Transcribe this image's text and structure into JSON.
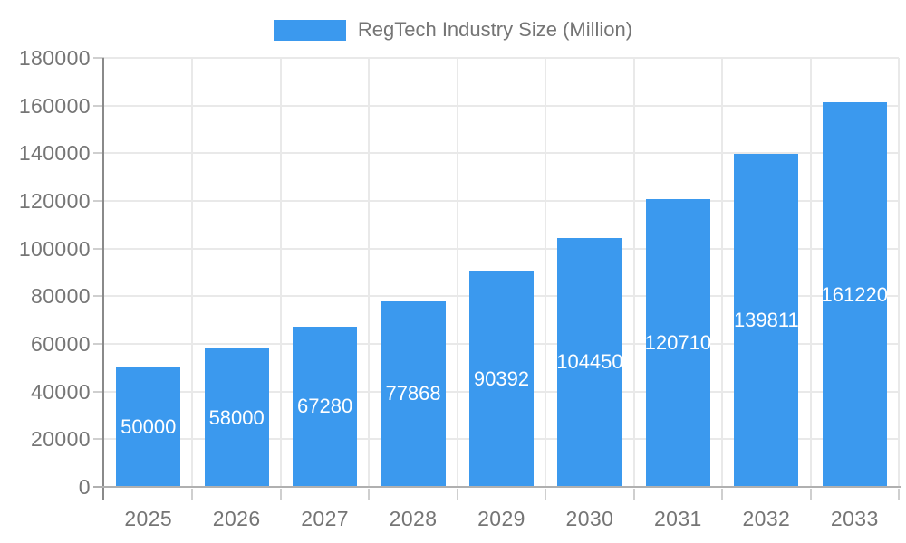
{
  "chart_data": {
    "type": "bar",
    "title": "RegTech Industry Size (Million)",
    "legend": {
      "label": "RegTech Industry Size (Million)",
      "position": "top"
    },
    "categories": [
      "2025",
      "2026",
      "2027",
      "2028",
      "2029",
      "2030",
      "2031",
      "2032",
      "2033"
    ],
    "series": [
      {
        "name": "RegTech Industry Size (Million)",
        "values": [
          50000,
          58000,
          67280,
          77868,
          90392,
          104450,
          120710,
          139811,
          161220
        ]
      }
    ],
    "bar_value_labels": [
      "50000",
      "58000",
      "67280",
      "77868",
      "90392",
      "104450",
      "120710",
      "139811",
      "161220"
    ],
    "xlabel": "",
    "ylabel": "",
    "ylim": [
      0,
      180000
    ],
    "yticks": [
      0,
      20000,
      40000,
      60000,
      80000,
      100000,
      120000,
      140000,
      160000,
      180000
    ],
    "grid": true,
    "colors": {
      "bar": "#3b99ee",
      "bar_value_label": "#ffffff",
      "axis_text": "#757575",
      "gridline": "#e9e9e9",
      "tick": "#cfcfcf",
      "y_axis_line": "#8a8a8a",
      "x_axis_line": "#b0b0b0",
      "background": "#ffffff"
    }
  }
}
